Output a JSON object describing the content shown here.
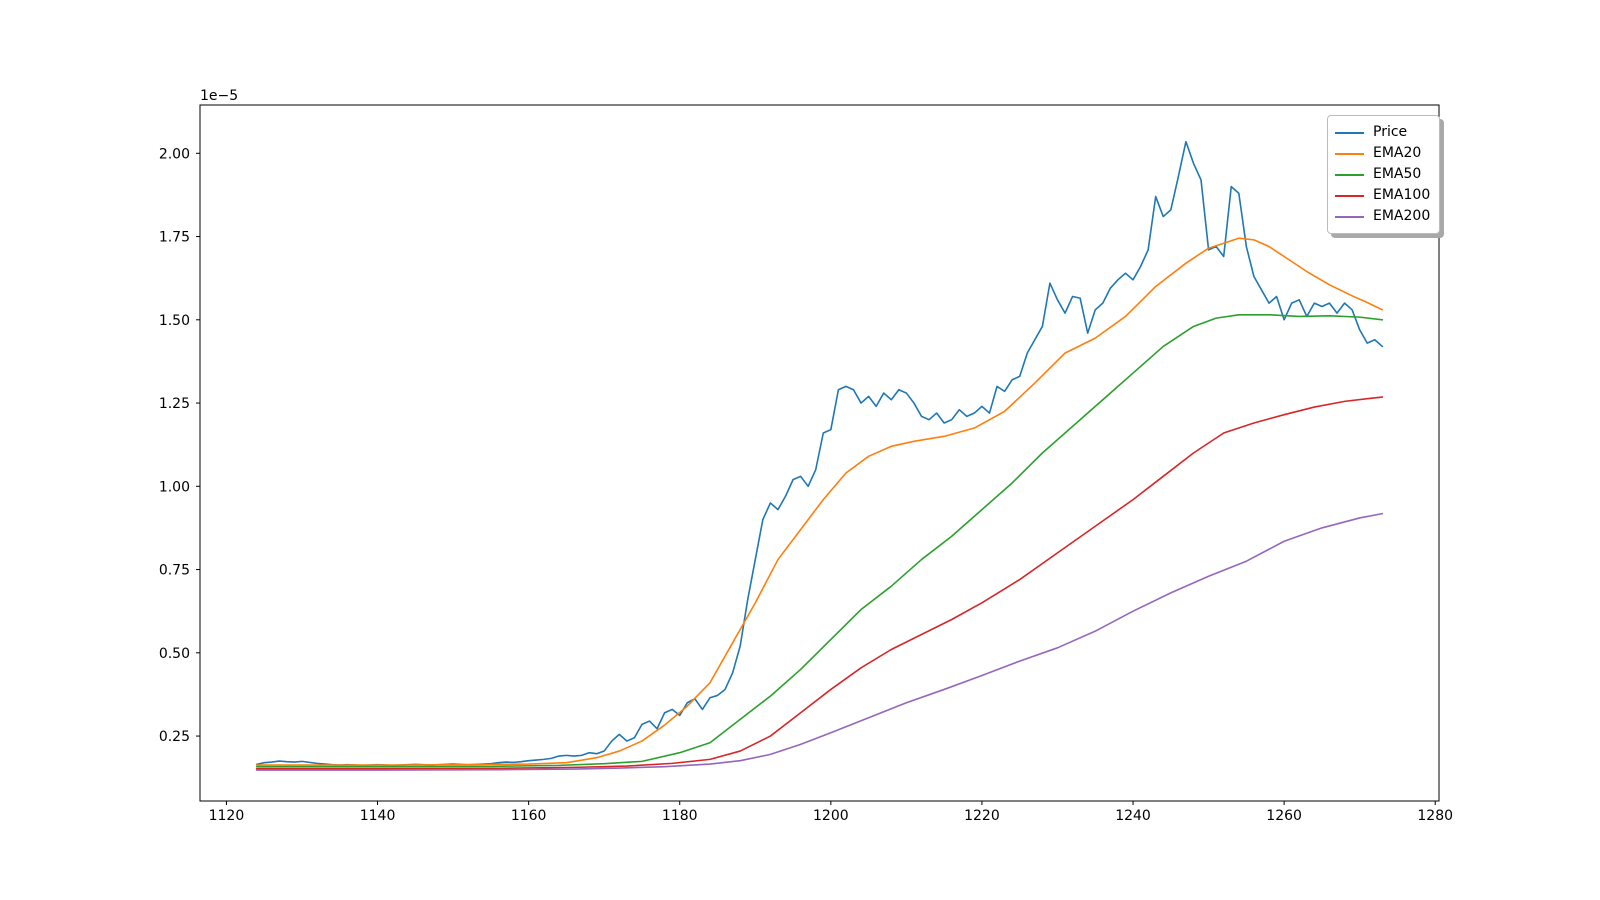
{
  "figure": {
    "background": "#ffffff",
    "offset_label": "1e−5"
  },
  "legend": {
    "position": "upper right",
    "entries": [
      {
        "label": "Price",
        "color": "#1f77b4"
      },
      {
        "label": "EMA20",
        "color": "#ff7f0e"
      },
      {
        "label": "EMA50",
        "color": "#2ca02c"
      },
      {
        "label": "EMA100",
        "color": "#d62728"
      },
      {
        "label": "EMA200",
        "color": "#9467bd"
      }
    ]
  },
  "chart_data": {
    "type": "line",
    "title": "",
    "xlabel": "",
    "ylabel": "",
    "y_offset_label": "1e−5",
    "y_unit_note": "all y values are in units of 1e-5",
    "grid": false,
    "legend_position": "upper right",
    "xlim": [
      1116.5,
      1280.5
    ],
    "ylim_e5": [
      0.055,
      2.145
    ],
    "x_ticks": [
      1120,
      1140,
      1160,
      1180,
      1200,
      1220,
      1240,
      1260,
      1280
    ],
    "y_ticks_e5": [
      0.25,
      0.5,
      0.75,
      1.0,
      1.25,
      1.5,
      1.75,
      2.0
    ],
    "series": [
      {
        "name": "Price",
        "color": "#1f77b4",
        "x_start": 1124,
        "x_step": 1,
        "y_e5": [
          0.165,
          0.17,
          0.172,
          0.175,
          0.173,
          0.172,
          0.174,
          0.171,
          0.168,
          0.166,
          0.164,
          0.163,
          0.164,
          0.163,
          0.162,
          0.163,
          0.164,
          0.163,
          0.162,
          0.163,
          0.164,
          0.165,
          0.164,
          0.163,
          0.164,
          0.165,
          0.166,
          0.165,
          0.164,
          0.165,
          0.166,
          0.167,
          0.17,
          0.172,
          0.171,
          0.173,
          0.176,
          0.178,
          0.18,
          0.183,
          0.19,
          0.192,
          0.19,
          0.192,
          0.2,
          0.197,
          0.205,
          0.235,
          0.255,
          0.235,
          0.245,
          0.285,
          0.295,
          0.272,
          0.32,
          0.33,
          0.312,
          0.35,
          0.362,
          0.33,
          0.365,
          0.372,
          0.39,
          0.44,
          0.52,
          0.66,
          0.78,
          0.9,
          0.95,
          0.93,
          0.97,
          1.02,
          1.03,
          1.0,
          1.05,
          1.16,
          1.17,
          1.29,
          1.3,
          1.29,
          1.25,
          1.27,
          1.24,
          1.28,
          1.26,
          1.29,
          1.28,
          1.25,
          1.21,
          1.2,
          1.22,
          1.19,
          1.2,
          1.23,
          1.21,
          1.22,
          1.24,
          1.22,
          1.3,
          1.285,
          1.32,
          1.33,
          1.4,
          1.44,
          1.48,
          1.61,
          1.56,
          1.52,
          1.57,
          1.565,
          1.46,
          1.53,
          1.55,
          1.595,
          1.62,
          1.64,
          1.62,
          1.66,
          1.71,
          1.87,
          1.81,
          1.83,
          1.93,
          2.035,
          1.97,
          1.92,
          1.71,
          1.72,
          1.69,
          1.9,
          1.88,
          1.72,
          1.63,
          1.59,
          1.55,
          1.57,
          1.5,
          1.55,
          1.56,
          1.51,
          1.55,
          1.54,
          1.55,
          1.52,
          1.55,
          1.53,
          1.47,
          1.43,
          1.44,
          1.42
        ]
      },
      {
        "name": "EMA20",
        "color": "#ff7f0e",
        "x": [
          1124,
          1132,
          1142,
          1152,
          1160,
          1165,
          1169,
          1172,
          1175,
          1178,
          1181,
          1184,
          1187,
          1190,
          1193,
          1196,
          1199,
          1202,
          1205,
          1208,
          1211,
          1215,
          1219,
          1223,
          1227,
          1231,
          1235,
          1239,
          1243,
          1247,
          1250,
          1252,
          1254,
          1256,
          1258,
          1260,
          1263,
          1266,
          1269,
          1271,
          1273
        ],
        "y_e5": [
          0.163,
          0.163,
          0.163,
          0.164,
          0.166,
          0.17,
          0.185,
          0.205,
          0.235,
          0.283,
          0.34,
          0.41,
          0.53,
          0.65,
          0.78,
          0.87,
          0.96,
          1.04,
          1.09,
          1.12,
          1.135,
          1.15,
          1.175,
          1.225,
          1.31,
          1.4,
          1.445,
          1.51,
          1.6,
          1.67,
          1.715,
          1.73,
          1.745,
          1.74,
          1.72,
          1.69,
          1.645,
          1.605,
          1.572,
          1.552,
          1.53
        ]
      },
      {
        "name": "EMA50",
        "color": "#2ca02c",
        "x": [
          1124,
          1140,
          1155,
          1164,
          1170,
          1175,
          1180,
          1184,
          1188,
          1192,
          1196,
          1200,
          1204,
          1208,
          1212,
          1216,
          1220,
          1224,
          1228,
          1232,
          1236,
          1240,
          1244,
          1248,
          1251,
          1254,
          1258,
          1262,
          1266,
          1270,
          1273
        ],
        "y_e5": [
          0.158,
          0.158,
          0.159,
          0.162,
          0.167,
          0.174,
          0.2,
          0.23,
          0.3,
          0.37,
          0.45,
          0.54,
          0.63,
          0.7,
          0.78,
          0.85,
          0.93,
          1.01,
          1.1,
          1.18,
          1.26,
          1.34,
          1.42,
          1.48,
          1.505,
          1.515,
          1.515,
          1.51,
          1.512,
          1.508,
          1.5
        ]
      },
      {
        "name": "EMA100",
        "color": "#d62728",
        "x": [
          1124,
          1140,
          1156,
          1166,
          1173,
          1179,
          1184,
          1188,
          1192,
          1196,
          1200,
          1204,
          1208,
          1212,
          1216,
          1220,
          1225,
          1230,
          1235,
          1240,
          1244,
          1248,
          1252,
          1256,
          1260,
          1264,
          1268,
          1271,
          1273
        ],
        "y_e5": [
          0.152,
          0.152,
          0.153,
          0.156,
          0.16,
          0.168,
          0.18,
          0.205,
          0.25,
          0.32,
          0.39,
          0.455,
          0.51,
          0.555,
          0.6,
          0.65,
          0.72,
          0.8,
          0.88,
          0.96,
          1.03,
          1.1,
          1.16,
          1.19,
          1.215,
          1.238,
          1.255,
          1.263,
          1.268
        ]
      },
      {
        "name": "EMA200",
        "color": "#9467bd",
        "x": [
          1124,
          1140,
          1156,
          1166,
          1172,
          1178,
          1184,
          1188,
          1192,
          1196,
          1200,
          1205,
          1210,
          1215,
          1220,
          1225,
          1230,
          1235,
          1240,
          1245,
          1250,
          1255,
          1260,
          1265,
          1270,
          1273
        ],
        "y_e5": [
          0.148,
          0.148,
          0.149,
          0.151,
          0.154,
          0.158,
          0.166,
          0.176,
          0.195,
          0.225,
          0.26,
          0.305,
          0.35,
          0.39,
          0.432,
          0.475,
          0.515,
          0.565,
          0.625,
          0.68,
          0.73,
          0.775,
          0.835,
          0.875,
          0.905,
          0.918
        ]
      }
    ]
  }
}
